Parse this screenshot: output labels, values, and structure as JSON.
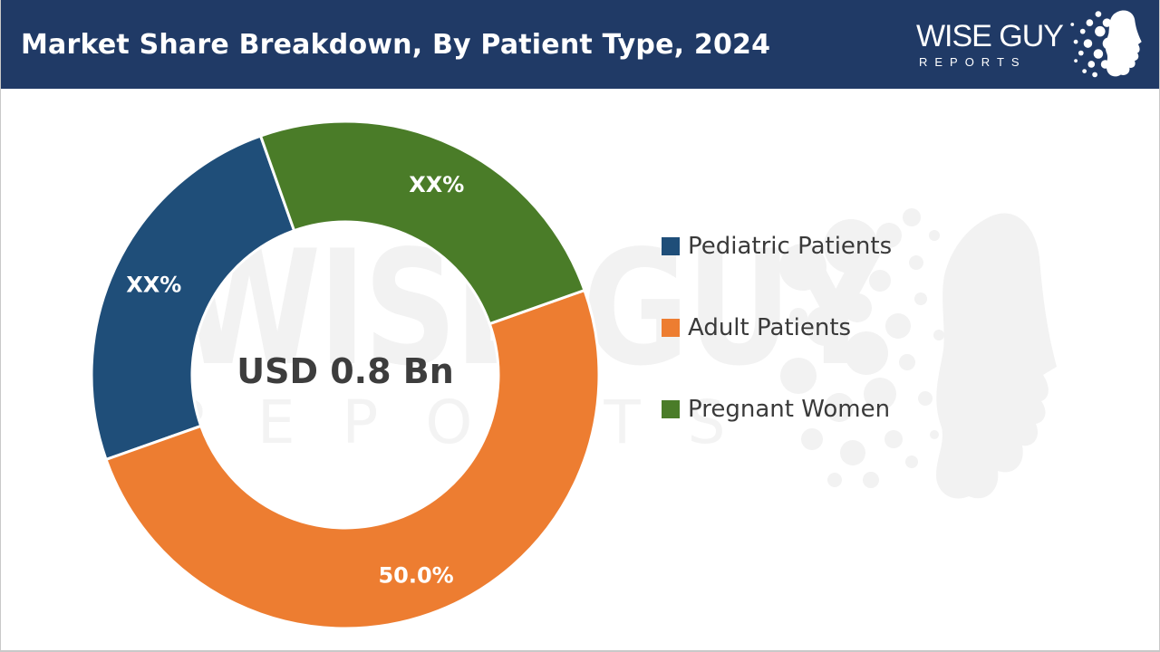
{
  "header": {
    "title": "Market Share Breakdown, By Patient Type, 2024",
    "logo": {
      "line1": "WISE GUY",
      "line2": "REPORTS"
    }
  },
  "watermark": {
    "line1": "WISE GUY",
    "line2": "REPORTS"
  },
  "chart_data": {
    "type": "pie",
    "subtype": "donut",
    "title": "Market Share Breakdown, By Patient Type, 2024",
    "center_label": "USD 0.8 Bn",
    "hole_ratio": 0.6,
    "start_angle_cw_from_top_deg": -19.5,
    "counterclockwise": true,
    "legend_position": "right",
    "slices": [
      {
        "label": "Pediatric Patients",
        "value": 25,
        "display": "XX%",
        "color": "#1F4E79"
      },
      {
        "label": "Adult Patients",
        "value": 50,
        "display": "50.0%",
        "color": "#ED7D31"
      },
      {
        "label": "Pregnant Women",
        "value": 25,
        "display": "XX%",
        "color": "#4A7C28"
      }
    ]
  }
}
